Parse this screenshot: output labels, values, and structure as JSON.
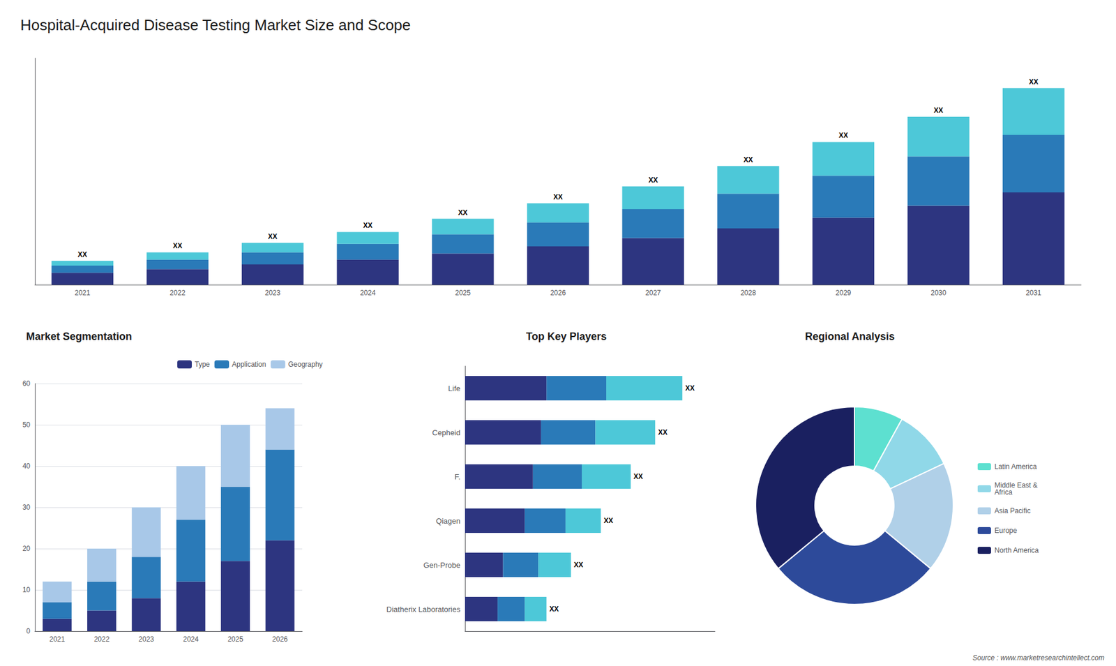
{
  "chart_data": [
    {
      "type": "bar",
      "title": "Hospital-Acquired Disease Testing Market Size and Scope",
      "categories": [
        "2021",
        "2022",
        "2023",
        "2024",
        "2025",
        "2026",
        "2027",
        "2028",
        "2029",
        "2030",
        "2031"
      ],
      "series": [
        {
          "color": "#2d3580",
          "values": [
            1.0,
            1.3,
            1.7,
            2.1,
            2.6,
            3.2,
            3.9,
            4.7,
            5.6,
            6.6,
            7.7
          ]
        },
        {
          "color": "#2a7ab8",
          "values": [
            0.6,
            0.8,
            1.0,
            1.3,
            1.6,
            2.0,
            2.4,
            2.9,
            3.5,
            4.1,
            4.8
          ]
        },
        {
          "color": "#4dc8d8",
          "values": [
            0.4,
            0.6,
            0.8,
            1.0,
            1.3,
            1.6,
            1.9,
            2.3,
            2.8,
            3.3,
            3.9
          ],
          "data_labels": true,
          "value_labels": [
            "XX",
            "XX",
            "XX",
            "XX",
            "XX",
            "XX",
            "XX",
            "XX",
            "XX",
            "XX",
            "XX"
          ]
        }
      ],
      "stacked": true,
      "ylim": [
        0,
        18.9
      ],
      "tick_labels": "x",
      "grid": false,
      "annotations": [
        "Source : www.marketresearchintellect.com"
      ]
    },
    {
      "type": "bar",
      "title": "Market Segmentation",
      "categories": [
        "2021",
        "2022",
        "2023",
        "2024",
        "2025",
        "2026"
      ],
      "series": [
        {
          "name": "Type",
          "color": "#2d3580",
          "values": [
            3,
            5,
            8,
            12,
            17,
            22
          ]
        },
        {
          "name": "Application",
          "color": "#2a7ab8",
          "values": [
            4,
            7,
            10,
            15,
            18,
            22
          ]
        },
        {
          "name": "Geography",
          "color": "#a8c8e8",
          "values": [
            5,
            8,
            12,
            13,
            15,
            10
          ]
        }
      ],
      "stacked": true,
      "ylim": [
        0,
        60
      ],
      "yticks": [
        0,
        10,
        20,
        30,
        40,
        50,
        60
      ],
      "grid": true,
      "legend": "top"
    },
    {
      "type": "bar",
      "orientation": "horizontal",
      "title": "Top Key Players",
      "categories": [
        "Life",
        "Cepheid",
        "F.",
        "Qiagen",
        "Gen-Probe",
        "Diatherix Laboratories"
      ],
      "series": [
        {
          "color": "#2d3580",
          "values": [
            30,
            28,
            25,
            22,
            14,
            12
          ]
        },
        {
          "color": "#2a7ab8",
          "values": [
            22,
            20,
            18,
            15,
            13,
            10
          ]
        },
        {
          "color": "#4dc8d8",
          "values": [
            28,
            22,
            18,
            13,
            12,
            8
          ],
          "data_labels": true,
          "value_labels": [
            "XX",
            "XX",
            "XX",
            "XX",
            "XX",
            "XX"
          ]
        }
      ],
      "stacked": true,
      "xlim": [
        0,
        92
      ],
      "tick_labels": "y",
      "grid": false
    },
    {
      "type": "pie",
      "title": "Regional Analysis",
      "categories": [
        "Latin America",
        "Middle East &\nAfrica",
        "Asia Pacific",
        "Europe",
        "North America"
      ],
      "values": [
        8,
        10,
        18,
        28,
        36
      ],
      "colors": [
        "#5de0d0",
        "#90d8e8",
        "#b0d0e8",
        "#2d4a9a",
        "#1a2060"
      ],
      "legend": "right"
    }
  ]
}
